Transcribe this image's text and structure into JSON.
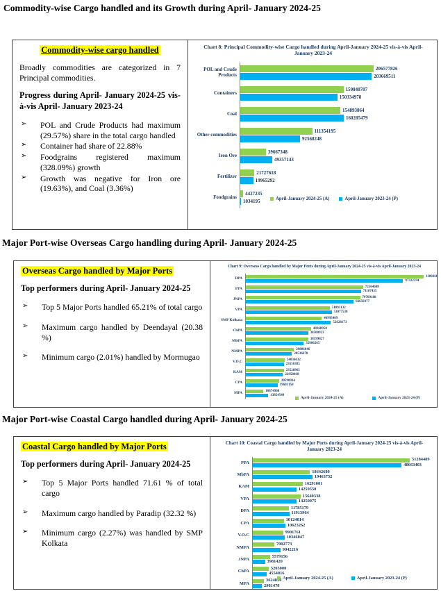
{
  "page": {
    "section1_heading": "Commodity-wise Cargo handled and its Growth during April- January 2024-25",
    "section2_heading": "Major Port-wise Overseas Cargo handling during April- January 2024-25",
    "section3_heading": "Major Port-wise Coastal Cargo handled during April- January 2024-25"
  },
  "bullet_marker": "➢",
  "boxes": [
    {
      "title": "Commodity-wise cargo handled",
      "intro": "Broadly commodities are categorized in 7 Principal commodities.",
      "subheading": "Progress during April- January 2024-25 vis-à-vis April- January 2023-24",
      "bullets": [
        "POL and Crude Products had maximum (29.57%) share in the total cargo handled",
        "Container had share of 22.88%",
        "Foodgrains registered maximum (328.09%) growth",
        "Growth was negative for Iron ore (19.63%), and Coal (3.36%)"
      ]
    },
    {
      "title": "Overseas Cargo handled by Major Ports",
      "subheading": "Top performers during April- January 2024-25",
      "bullets": [
        "Top 5 Major Ports handled 65.21% of total cargo",
        "Maximum cargo handled by Deendayal (20.38 %)",
        "Minimum cargo (2.01%) handled by Mormugao"
      ]
    },
    {
      "title": "Coastal Cargo handled by Major Ports",
      "subheading": "Top performers during April- January 2024-25",
      "bullets": [
        "Top 5 Major Ports handled 71.61 % of total cargo",
        "Maximum cargo handled by Paradip (32.32 %)",
        "Minimum cargo (2.27%) was handled by SMP Kolkata"
      ]
    }
  ],
  "colors": {
    "series_a_green": "#92D050",
    "series_b_blue": "#00B0F0",
    "highlight_yellow": "#FFFF00",
    "chart_text_navy": "#17375E"
  },
  "chart_data": [
    {
      "type": "bar",
      "orientation": "horizontal",
      "title": "Chart 8: Principal Commodity-wise Cargo handled  during April-January 2024-25 vis-à-vis April-January 2023-24",
      "categories": [
        "POL and Crude Products",
        "Containers",
        "Coal",
        "Other commodities",
        "Iron Ore",
        "Fertilizer",
        "Foodgrains"
      ],
      "series": [
        {
          "name": "April-January 2024-25 (A)",
          "values": [
            206577826,
            159840707,
            154893864,
            111354195,
            39667348,
            21727618,
            4427235
          ]
        },
        {
          "name": "April-January 2023-24 (P)",
          "values": [
            203669511,
            150334978,
            160285479,
            92568248,
            49357143,
            19965292,
            1034195
          ]
        }
      ],
      "xmax": 206577826,
      "grid": false,
      "legend_position": "bottom-right-inside"
    },
    {
      "type": "bar",
      "orientation": "horizontal",
      "title": "Chart 9: Overseas Cargo handled by Major Ports during April-January 2024-25 vis-à-vis April-January 2023-24",
      "categories": [
        "DPA",
        "PPA",
        "JNPA",
        "VPA",
        "SMP Kolkata",
        "ChPA",
        "MbPA",
        "NMPA",
        "V.O.C",
        "KAM",
        "CPA",
        "MPA"
      ],
      "series": [
        {
          "name": "April-January 2024-25 (A)",
          "values": [
            110036877,
            72564688,
            70709188,
            51893132,
            46995489,
            40368950,
            38599827,
            29806046,
            24036632,
            23520965,
            20590934,
            10874908
          ]
        },
        {
          "name": "April-January 2023-24 (P)",
          "values": [
            97322594,
            71187435,
            66650377,
            53077538,
            52628173,
            38500923,
            35806265,
            28536678,
            23556385,
            22958468,
            19603158,
            13854540
          ]
        }
      ],
      "xmax": 110036877,
      "grid": false,
      "legend_position": "bottom-inside"
    },
    {
      "type": "bar",
      "orientation": "horizontal",
      "title": "Chart 10: Coastal Cargo handled by Major Ports during April-January 2024-25 vis-à-vis April-January 2023-24",
      "categories": [
        "PPA",
        "MbPA",
        "KAM",
        "VPA",
        "DPA",
        "CPA",
        "V.O.C",
        "NMPA",
        "JNPA",
        "ChPA",
        "MPA",
        "SMP Kolkata"
      ],
      "series": [
        {
          "name": "April-January 2024-25 (A)",
          "values": [
            51284489,
            18642680,
            16291001,
            15640338,
            11785179,
            10124814,
            9901761,
            7002773,
            5579156,
            5205000,
            3624834,
            3608934
          ]
        },
        {
          "name": "April-January 2023-24 (P)",
          "values": [
            48663403,
            19463752,
            14259550,
            14250075,
            11913964,
            10623262,
            10346047,
            9042216,
            3981420,
            4554016,
            2981470,
            3363129
          ]
        }
      ],
      "xmax": 51284489,
      "grid": false,
      "legend_position": "bottom-right-inside"
    }
  ]
}
